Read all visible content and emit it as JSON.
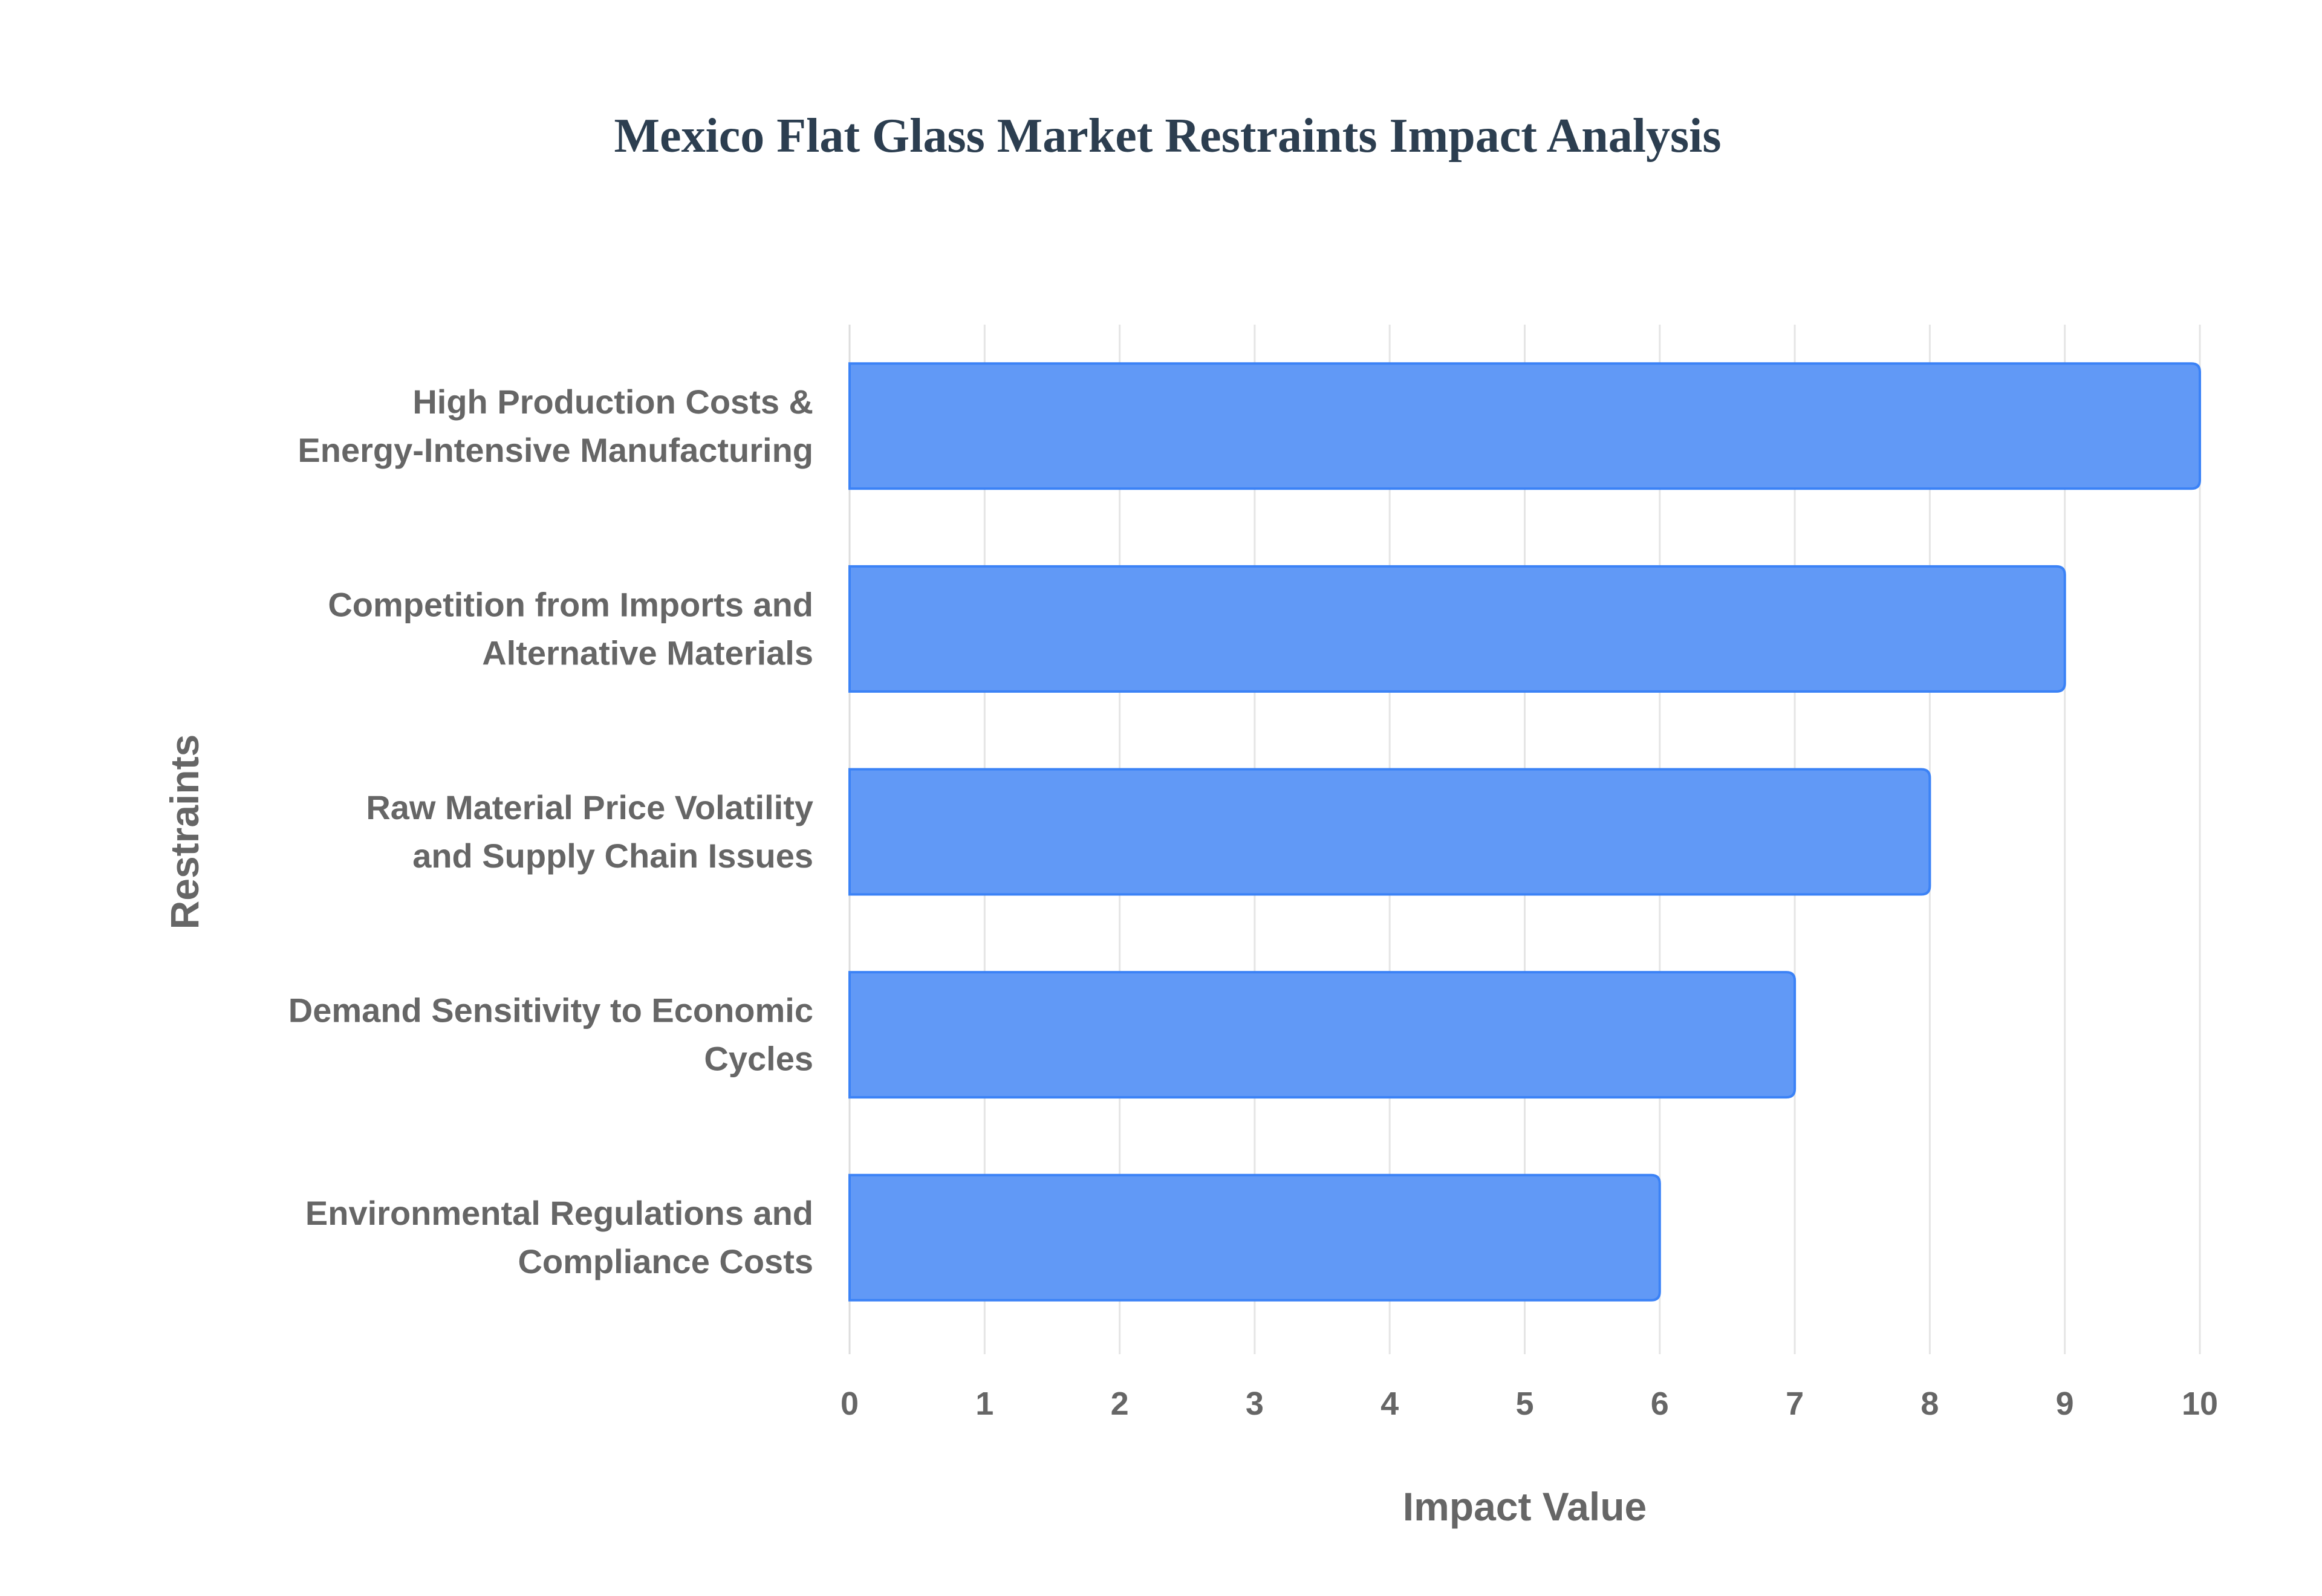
{
  "chart_data": {
    "type": "bar",
    "orientation": "horizontal",
    "title": "Mexico Flat Glass Market Restraints Impact Analysis",
    "xlabel": "Impact Value",
    "ylabel": "Restraints",
    "categories": [
      [
        "High Production Costs &",
        "Energy-Intensive Manufacturing"
      ],
      [
        "Competition from Imports and",
        "Alternative Materials"
      ],
      [
        "Raw Material Price Volatility",
        "and Supply Chain Issues"
      ],
      [
        "Demand Sensitivity to Economic",
        "Cycles"
      ],
      [
        "Environmental Regulations and",
        "Compliance Costs"
      ]
    ],
    "values": [
      10,
      9,
      8,
      7,
      6
    ],
    "xlim": [
      0,
      10
    ],
    "xticks": [
      "0",
      "1",
      "2",
      "3",
      "4",
      "5",
      "6",
      "7",
      "8",
      "9",
      "10"
    ],
    "grid": true,
    "legend": "none",
    "colors": {
      "bar_fill": "#6199f6",
      "bar_border": "#3b82f6",
      "grid": "#e5e5e5",
      "text": "#666666",
      "title": "#2c3e50"
    }
  }
}
